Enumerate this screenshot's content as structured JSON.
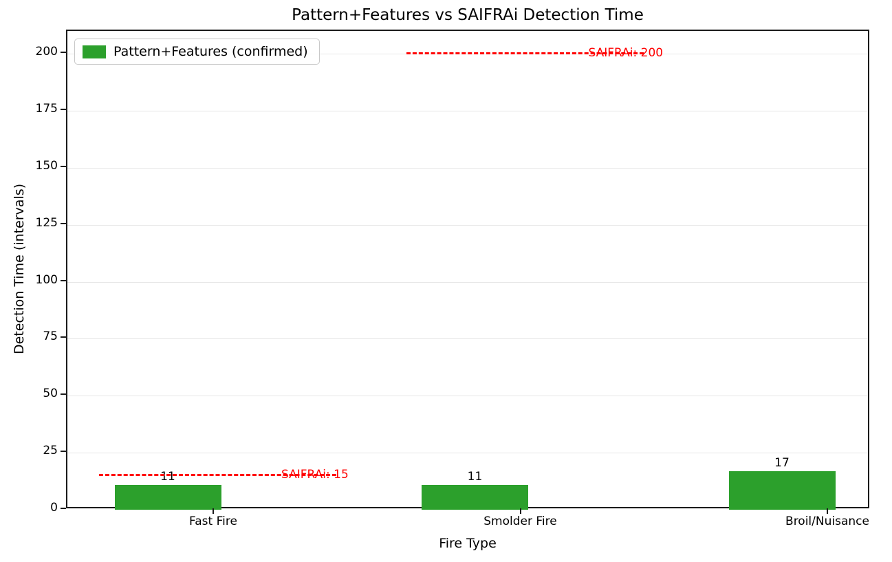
{
  "chart_data": {
    "type": "bar",
    "title": "Pattern+Features vs SAIFRAi Detection Time",
    "xlabel": "Fire Type",
    "ylabel": "Detection Time (intervals)",
    "categories": [
      "Fast Fire",
      "Smolder Fire",
      "Broil/Nuisance"
    ],
    "series": [
      {
        "name": "Pattern+Features (confirmed)",
        "type": "bar",
        "color": "#2ca02c",
        "values": [
          11,
          11,
          17
        ]
      }
    ],
    "bar_labels": [
      "11",
      "11",
      "17"
    ],
    "reference_lines": [
      {
        "category": "Fast Fire",
        "value": 15,
        "label": "SAIFRAi: 15",
        "color": "#ff0000",
        "style": "dashed"
      },
      {
        "category": "Smolder Fire",
        "value": 200,
        "label": "SAIFRAi: 200",
        "color": "#ff0000",
        "style": "dashed"
      }
    ],
    "yticks": [
      0,
      25,
      50,
      75,
      100,
      125,
      150,
      175,
      200
    ],
    "ylim": [
      0,
      210
    ],
    "grid": "horizontal-light",
    "legend_position": "upper-left",
    "legend_items": [
      {
        "label": "Pattern+Features (confirmed)",
        "color": "#2ca02c"
      }
    ]
  },
  "colors": {
    "bar_green": "#2ca02c",
    "line_red": "#ff0000",
    "grid": "#e6e6e6",
    "axis": "#1a1a1a",
    "background": "#ffffff"
  }
}
